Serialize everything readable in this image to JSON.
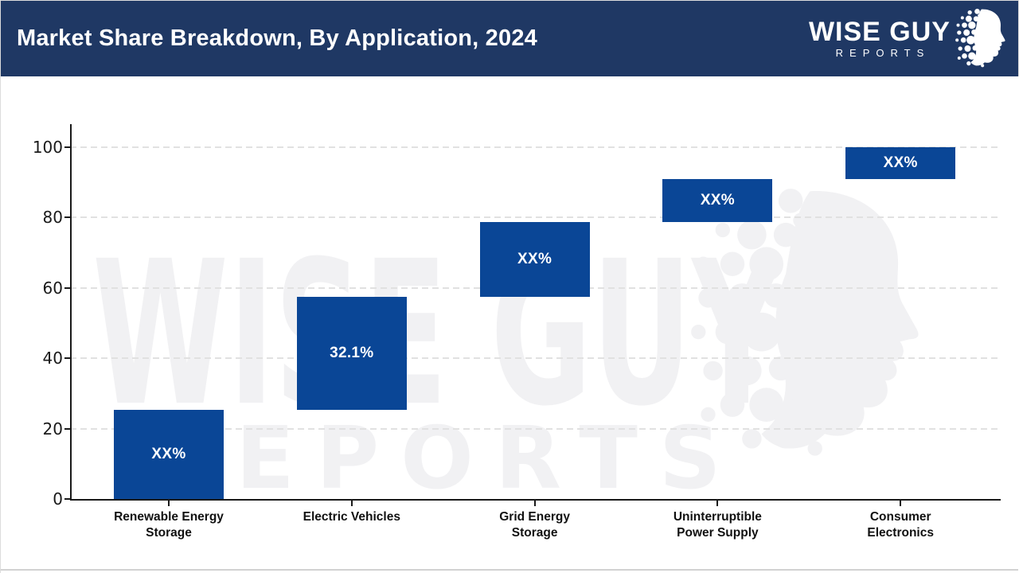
{
  "header": {
    "title": "Market Share Breakdown, By Application, 2024",
    "logo": {
      "brand": "WISE GUY",
      "sub": "REPORTS"
    }
  },
  "watermark": {
    "line1": "WISE GUY",
    "line2": "REPORTS"
  },
  "colors": {
    "header_bg": "#1f3864",
    "bar": "#0a4696",
    "grid": "#e1e1e1",
    "axis": "#1a1a1a",
    "watermark": "#f1f1f3"
  },
  "chart_data": {
    "type": "bar",
    "variant": "waterfall",
    "title": "Market Share Breakdown, By Application, 2024",
    "unit": "%",
    "categories": [
      "Renewable Energy Storage",
      "Electric Vehicles",
      "Grid Energy Storage",
      "Uninterruptible Power Supply",
      "Consumer Electronics"
    ],
    "bars": [
      {
        "category": "Renewable Energy Storage",
        "lines": [
          "Renewable Energy",
          "Storage"
        ],
        "start": 0,
        "end": 25.3,
        "label": "XX%"
      },
      {
        "category": "Electric Vehicles",
        "lines": [
          "Electric Vehicles"
        ],
        "start": 25.3,
        "end": 57.4,
        "label": "32.1%",
        "value": 32.1
      },
      {
        "category": "Grid Energy Storage",
        "lines": [
          "Grid Energy",
          "Storage"
        ],
        "start": 57.4,
        "end": 78.8,
        "label": "XX%"
      },
      {
        "category": "Uninterruptible Power Supply",
        "lines": [
          "Uninterruptible",
          "Power Supply"
        ],
        "start": 78.8,
        "end": 91.0,
        "label": "XX%"
      },
      {
        "category": "Consumer Electronics",
        "lines": [
          "Consumer",
          "Electronics"
        ],
        "start": 91.0,
        "end": 100.0,
        "label": "XX%"
      }
    ],
    "yticks": [
      0,
      20,
      40,
      60,
      80,
      100
    ],
    "ylim": [
      0,
      106
    ],
    "xlabel": "",
    "ylabel": "",
    "grid": "horizontal-dashed",
    "legend_position": "none"
  }
}
